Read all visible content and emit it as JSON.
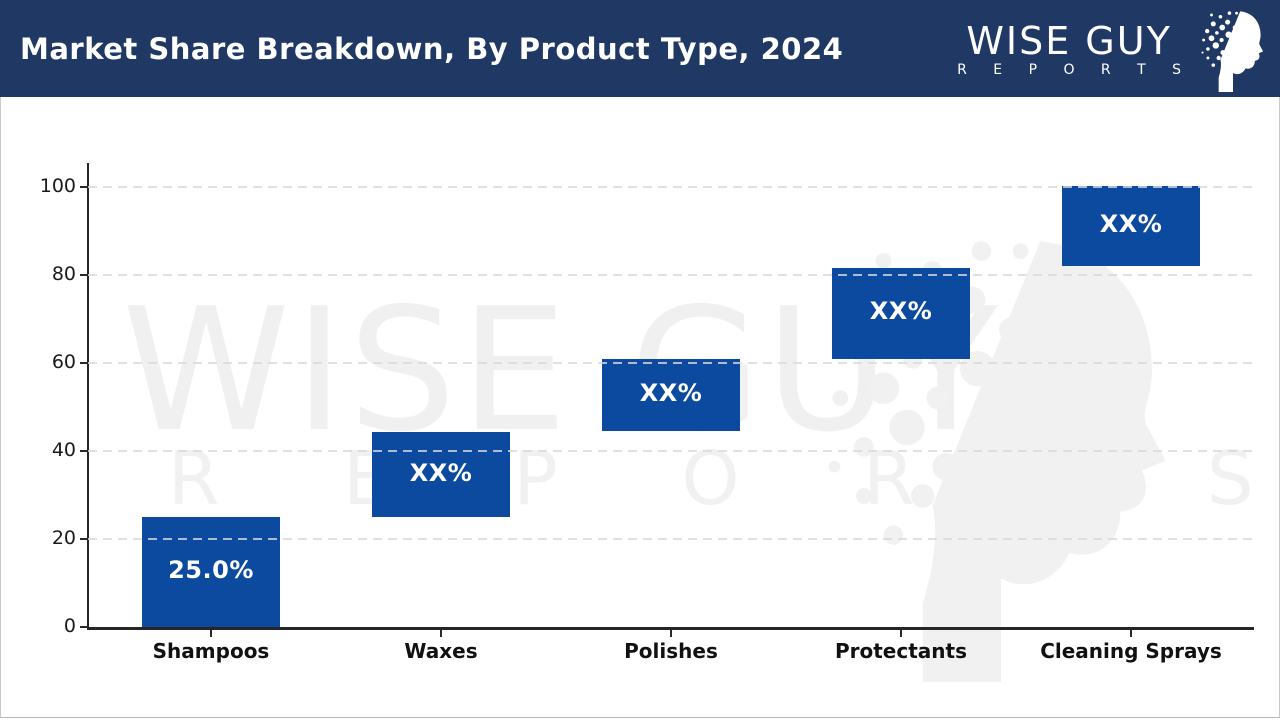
{
  "header": {
    "title": "Market Share Breakdown, By Product Type, 2024",
    "bg_color": "#203864",
    "logo": {
      "line1": "WISE GUY",
      "line2": "R E P O R T S"
    }
  },
  "watermark": {
    "line1": "WISE GUY",
    "line2": "R E P O R T S",
    "color": "#f0f0f0"
  },
  "chart_data": {
    "type": "bar",
    "subtype": "floating-segment-waterfall",
    "title": "Market Share Breakdown, By Product Type, 2024",
    "categories": [
      "Shampoos",
      "Waxes",
      "Polishes",
      "Protectants",
      "Cleaning Sprays"
    ],
    "segments": [
      [
        0,
        25.0
      ],
      [
        25.0,
        44.3
      ],
      [
        44.5,
        60.8
      ],
      [
        61.0,
        81.6
      ],
      [
        82.0,
        100.2
      ]
    ],
    "bar_labels": [
      "25.0%",
      "XX%",
      "XX%",
      "XX%",
      "XX%"
    ],
    "xlabel": "",
    "ylabel": "",
    "ylim": [
      0,
      105
    ],
    "yticks": [
      0,
      20,
      40,
      60,
      80,
      100
    ],
    "grid": "horizontal dashed",
    "legend": "none",
    "bar_color": "#0b4a9e",
    "label_color": "#ffffff"
  }
}
